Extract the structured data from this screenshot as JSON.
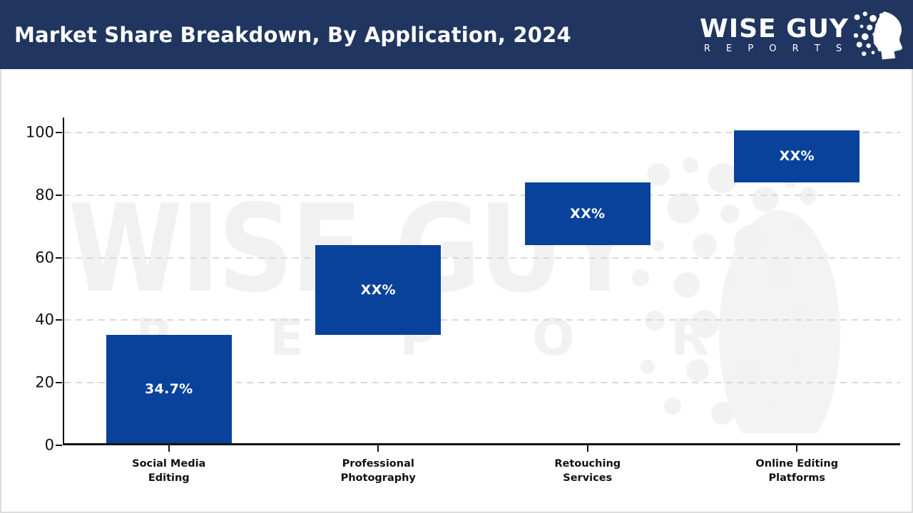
{
  "header": {
    "title": "Market Share Breakdown, By Application, 2024",
    "logo": {
      "primary": "WISE GUY",
      "secondary": "R E P O R T S",
      "icon": "face-dots-icon"
    }
  },
  "watermark": {
    "primary": "WISE GUY",
    "secondary": "R E P O R T S",
    "icon": "face-dots-watermark"
  },
  "colors": {
    "header_bg": "#20355f",
    "bar": "#08429a",
    "bar_label": "#ffffff",
    "axis": "#111111",
    "grid": "#d9d9d9",
    "watermark": "#f1f1f2",
    "title_text": "#ffffff",
    "tick_text": "#111111"
  },
  "chart_data": {
    "type": "bar",
    "subtype": "stacked-waterfall",
    "title": "Market Share Breakdown, By Application, 2024",
    "categories": [
      [
        "Social Media",
        "Editing"
      ],
      [
        "Professional",
        "Photography"
      ],
      [
        "Retouching",
        "Services"
      ],
      [
        "Online Editing",
        "Platforms"
      ]
    ],
    "segments": [
      {
        "start": 0,
        "end": 34.7,
        "label": "34.7%"
      },
      {
        "start": 34.7,
        "end": 63.3,
        "label": "XX%"
      },
      {
        "start": 63.3,
        "end": 83.4,
        "label": "XX%"
      },
      {
        "start": 83.4,
        "end": 100,
        "label": "XX%"
      }
    ],
    "y_axis": {
      "ticks": [
        0,
        20,
        40,
        60,
        80,
        100
      ],
      "range": [
        0,
        104
      ],
      "gridlines": "dashed",
      "unit": "percent"
    },
    "x_axis": {
      "label": ""
    },
    "legend": "none",
    "bar_color": "#08429a"
  }
}
